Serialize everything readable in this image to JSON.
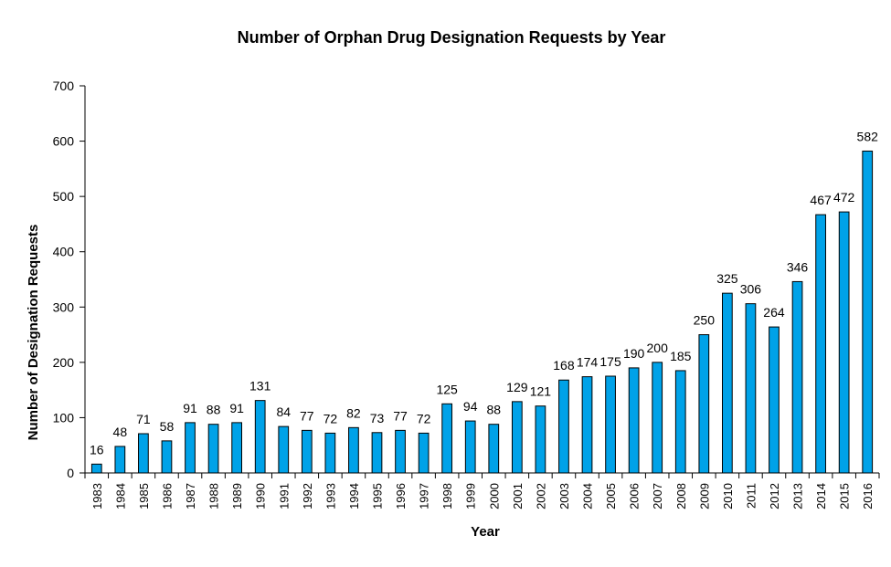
{
  "chart_data": {
    "type": "bar",
    "title": "Number of Orphan Drug Designation  Requests by Year",
    "xlabel": "Year",
    "ylabel": "Number of Designation Requests",
    "ylim": [
      0,
      700
    ],
    "yticks": [
      0,
      100,
      200,
      300,
      400,
      500,
      600,
      700
    ],
    "grid": false,
    "legend": "none",
    "bar_color": "#00a2e8",
    "categories": [
      "1983",
      "1984",
      "1985",
      "1986",
      "1987",
      "1988",
      "1989",
      "1990",
      "1991",
      "1992",
      "1993",
      "1994",
      "1995",
      "1996",
      "1997",
      "1998",
      "1999",
      "2000",
      "2001",
      "2002",
      "2003",
      "2004",
      "2005",
      "2006",
      "2007",
      "2008",
      "2009",
      "2010",
      "2011",
      "2012",
      "2013",
      "2014",
      "2015",
      "2016"
    ],
    "values": [
      16,
      48,
      71,
      58,
      91,
      88,
      91,
      131,
      84,
      77,
      72,
      82,
      73,
      77,
      72,
      125,
      94,
      88,
      129,
      121,
      168,
      174,
      175,
      190,
      200,
      185,
      250,
      325,
      306,
      264,
      346,
      467,
      472,
      582
    ]
  }
}
